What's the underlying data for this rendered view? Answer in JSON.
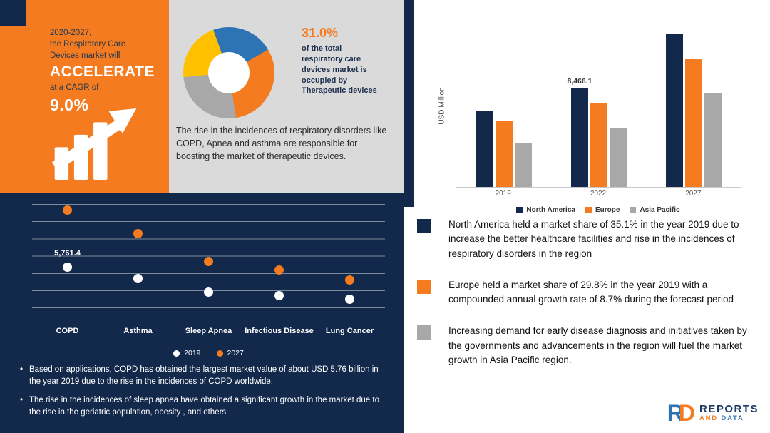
{
  "colors": {
    "orange": "#f47b20",
    "navy": "#13294b",
    "panel_gray": "#dadada",
    "bar_gray": "#a8a8a8",
    "blue": "#2e74b5",
    "yellow": "#ffc000"
  },
  "cagr_panel": {
    "line1": "2020-2027,",
    "line2": "the Respiratory Care",
    "line3": "Devices market will",
    "accelerate": "ACCELERATE",
    "cagr_label": "at a CAGR of",
    "cagr_value": "9.0%"
  },
  "therapeutic_panel": {
    "stat_value": "31.0%",
    "stat_description": "of the total respiratory care devices market is occupied by Therapeutic devices",
    "body": "The rise in the incidences of respiratory disorders like COPD, Apnea and asthma are responsible for boosting the market of therapeutic devices."
  },
  "application_notes": [
    "Based on applications, COPD has obtained the largest market value of about USD 5.76 billion in the year 2019 due to the rise in the incidences of COPD worldwide.",
    "The rise in  the incidences of  sleep apnea have obtained a significant growth in the market  due to the rise in the geriatric population, obesity , and others"
  ],
  "regional_bullets": [
    {
      "color": "#13294b",
      "text": "North America held a market share of 35.1% in the year 2019 due to increase the better healthcare facilities and rise in the incidences of respiratory disorders  in the region"
    },
    {
      "color": "#f47b20",
      "text": "Europe held a market share of 29.8% in the year 2019 with a compounded annual growth rate of 8.7% during the forecast period"
    },
    {
      "color": "#a8a8a8",
      "text": "Increasing demand for early disease diagnosis and initiatives taken by the governments and advancements  in the region will fuel the market growth in Asia Pacific region."
    }
  ],
  "logo": {
    "mark_r": "R",
    "mark_d": "D",
    "line1": "REPORTS",
    "line2_a": "AND",
    "line2_b": "DATA"
  },
  "chart_data": [
    {
      "id": "therapeutic-share-donut",
      "type": "pie",
      "segments": [
        {
          "label": "",
          "value": 22,
          "color": "#2e74b5"
        },
        {
          "label": "Therapeutic devices",
          "value": 31,
          "color": "#f47b20"
        },
        {
          "label": "",
          "value": 26,
          "color": "#a8a8a8"
        },
        {
          "label": "",
          "value": 21,
          "color": "#ffc000"
        }
      ]
    },
    {
      "id": "application-dot-plot",
      "type": "scatter",
      "categories": [
        "COPD",
        "Asthma",
        "Sleep Apnea",
        "Infectious Disease",
        "Lung Cancer"
      ],
      "series": [
        {
          "name": "2019",
          "color": "#ffffff",
          "values": [
            5761.4,
            4600,
            3300,
            2900,
            2600
          ]
        },
        {
          "name": "2027",
          "color": "#f47b20",
          "values": [
            11400,
            9100,
            6300,
            5500,
            4500
          ]
        }
      ],
      "ylim": [
        0,
        12000
      ],
      "grid": true,
      "legend_position": "bottom",
      "data_label": {
        "series": "2019",
        "category": "COPD",
        "text": "5,761.4"
      }
    },
    {
      "id": "regional-bar-chart",
      "type": "bar",
      "categories": [
        "2019",
        "2022",
        "2027"
      ],
      "series": [
        {
          "name": "North America",
          "color": "#13294b",
          "values": [
            6500,
            8466.1,
            13000
          ]
        },
        {
          "name": "Europe",
          "color": "#f47b20",
          "values": [
            5600,
            7100,
            10900
          ]
        },
        {
          "name": "Asia Pacific",
          "color": "#a8a8a8",
          "values": [
            3750,
            5000,
            8050
          ]
        }
      ],
      "ylabel": "USD Million",
      "ylim": [
        0,
        13500
      ],
      "grid": false,
      "legend_position": "bottom",
      "data_label": {
        "series": "North America",
        "category": "2022",
        "text": "8,466.1"
      }
    }
  ]
}
